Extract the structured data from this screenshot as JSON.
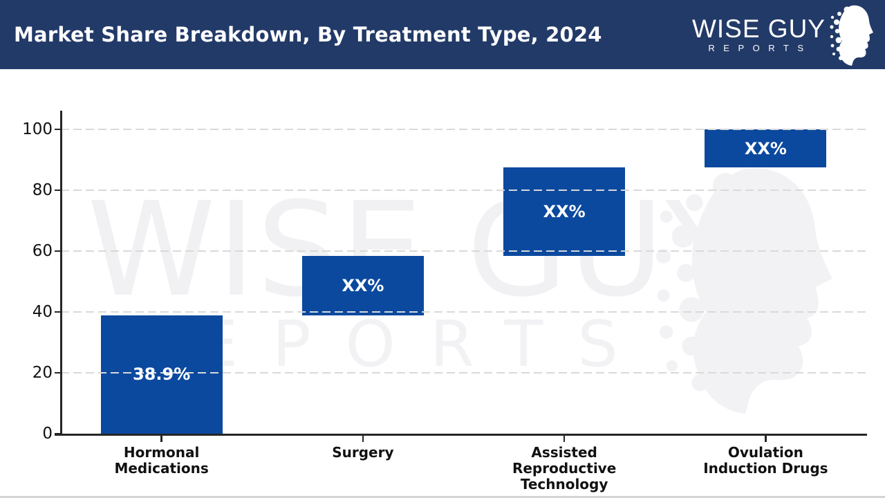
{
  "header": {
    "title": "Market Share Breakdown, By Treatment Type, 2024",
    "logo": {
      "wordmark": "WISE GUY",
      "subtext": "REPORTS"
    }
  },
  "watermark": {
    "wordmark": "WISE GUY",
    "subtext": "REPORTS"
  },
  "colors": {
    "header_bg": "#223a68",
    "bar_blue": "#0b499f",
    "grid_gray": "#d9d9d9",
    "axis_dark": "#262626",
    "watermark_gray": "#f1f1f4",
    "label_white": "#ffffff"
  },
  "chart_data": {
    "type": "bar",
    "subtype": "waterfall",
    "title": "Market Share Breakdown, By Treatment Type, 2024",
    "xlabel": "",
    "ylabel": "",
    "categories": [
      "Hormonal\nMedications",
      "Surgery",
      "Assisted\nReproductive\nTechnology",
      "Ovulation\nInduction Drugs"
    ],
    "segments": [
      {
        "category": "Hormonal Medications",
        "start": 0,
        "end": 38.9,
        "label": "38.9%"
      },
      {
        "category": "Surgery",
        "start": 38.9,
        "end": 58.4,
        "label": "XX%"
      },
      {
        "category": "Assisted Reproductive Technology",
        "start": 58.4,
        "end": 87.5,
        "label": "XX%"
      },
      {
        "category": "Ovulation Induction Drugs",
        "start": 87.5,
        "end": 100,
        "label": "XX%"
      }
    ],
    "yticks": [
      0,
      20,
      40,
      60,
      80,
      100
    ],
    "ylim": [
      0,
      105
    ],
    "grid": "horizontal-dashed",
    "grid_above_bars": true,
    "legend": "none",
    "bar_color": "#0b499f",
    "value_label_color": "#ffffff"
  }
}
